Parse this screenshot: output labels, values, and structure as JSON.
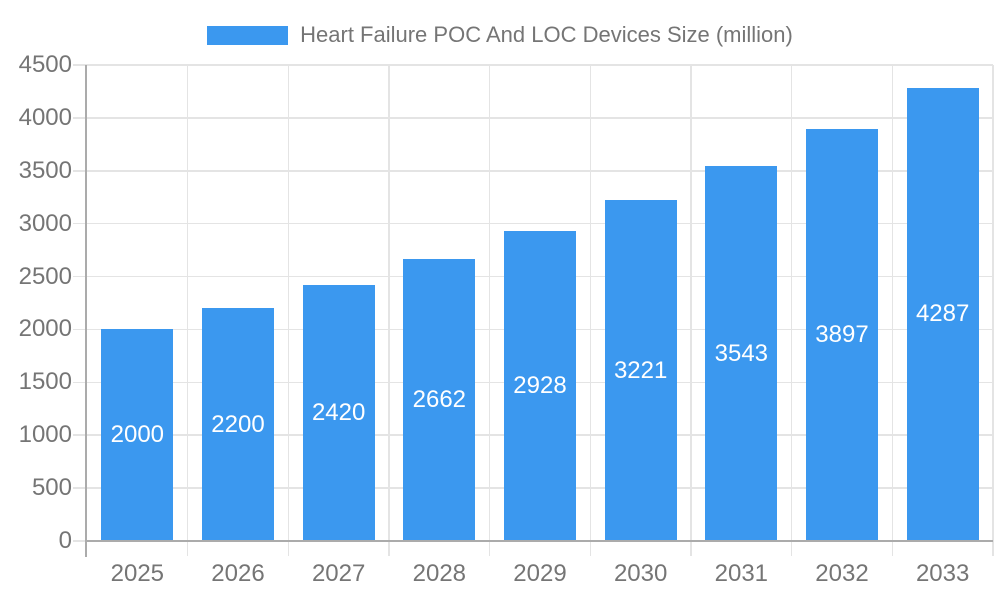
{
  "chart_data": {
    "type": "bar",
    "title": "Heart Failure POC And LOC Devices Size (million)",
    "categories": [
      "2025",
      "2026",
      "2027",
      "2028",
      "2029",
      "2030",
      "2031",
      "2032",
      "2033"
    ],
    "values": [
      2000,
      2200,
      2420,
      2662,
      2928,
      3221,
      3543,
      3897,
      4287
    ],
    "ylim": [
      0,
      4500
    ],
    "yticks": [
      0,
      500,
      1000,
      1500,
      2000,
      2500,
      3000,
      3500,
      4000,
      4500
    ],
    "xlabel": "",
    "ylabel": "",
    "grid": true,
    "legend_position": "top-center",
    "value_label_position": "inside-center",
    "colors": {
      "bar": "#3b98ef",
      "grid": "#e4e4e4",
      "tick": "#e4e4e4",
      "axis_line": "#ababab",
      "label_text": "#757575",
      "value_text": "#ffffff",
      "background": "#ffffff"
    }
  }
}
